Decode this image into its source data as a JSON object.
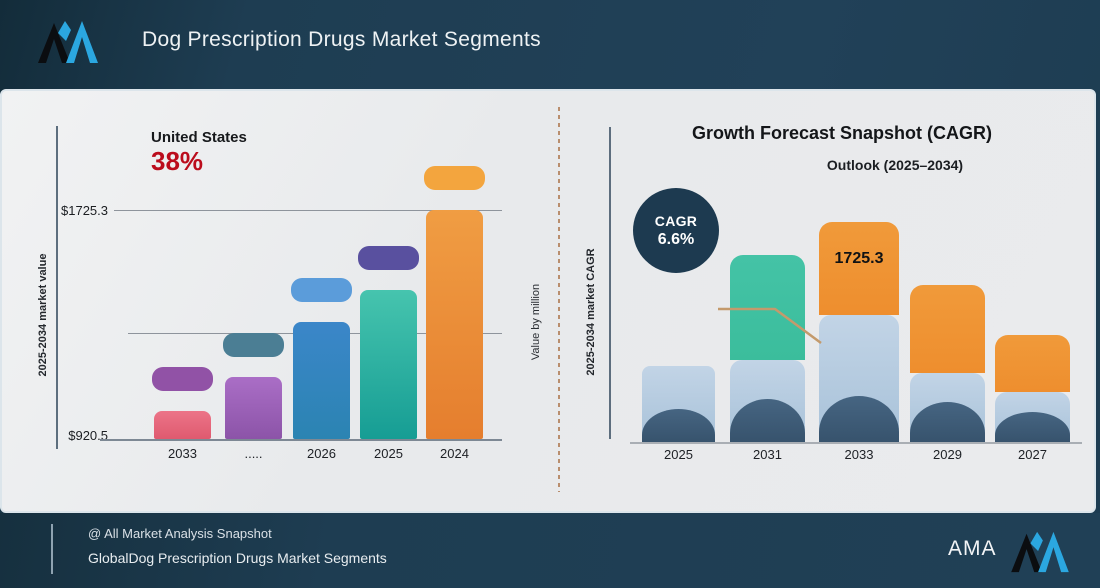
{
  "header": {
    "title": "Dog Prescription Drugs Market Segments"
  },
  "footer": {
    "line1": "@ All Market Analysis Snapshot",
    "line2": "GlobalDog Prescription Drugs Market Segments",
    "brand": "AMA"
  },
  "colors": {
    "header_bg": "#1e3d52",
    "panel_bg": "#e9eaec",
    "accent_red": "#bb0c1c",
    "badge_navy": "#1d3a50",
    "leader_line": "#c49a6c",
    "dashed_divider": "#b98e6e",
    "stack_base_navy": "#3e5c77",
    "stack_mid_lightblue": "#b7cde1",
    "stack_top_teal": "#3bbd9c",
    "stack_top_orange": "#ee8e2e"
  },
  "chart_data": [
    {
      "type": "bar",
      "title": "United States",
      "annotation": "38%",
      "ylabel": "2025-2034 market value",
      "ylabel_right": "Value by million",
      "yticks": [
        "$920.5",
        "$1725.3"
      ],
      "ylim": [
        920.5,
        1725.3
      ],
      "grid": "horizontal",
      "categories": [
        "2033",
        ".....",
        "2026",
        "2025",
        "2024"
      ],
      "values": [
        1020,
        1140,
        1330,
        1445,
        1725.3
      ],
      "bars": [
        {
          "color_top": "#ec7488",
          "color_bottom": "#df5a6f",
          "floater": "#9152a6"
        },
        {
          "color_top": "#aa6ec6",
          "color_bottom": "#8c54a8",
          "floater": "#4b7e94"
        },
        {
          "color_top": "#3b86c9",
          "color_bottom": "#2b84b2",
          "floater": "#5b9cda"
        },
        {
          "color_top": "#46c4ae",
          "color_bottom": "#169d94",
          "floater": "#59509f"
        },
        {
          "color_top": "#f09d43",
          "color_bottom": "#e57e2e",
          "floater": "#f3a53e"
        }
      ]
    },
    {
      "type": "stacked_bar",
      "title": "Growth Forecast Snapshot (CAGR)",
      "subtitle": "Outlook (2025–2034)",
      "ylabel": "2025-2034 market CAGR",
      "cagr_badge": {
        "label": "CAGR",
        "value": "6.6%"
      },
      "legend_position": "none",
      "categories": [
        "2025",
        "2031",
        "2033",
        "2029",
        "2027"
      ],
      "bars": [
        {
          "base_h": 33,
          "mid_top": 76,
          "total_top": 76,
          "top_color": null,
          "label": null
        },
        {
          "base_h": 43,
          "mid_top": 82,
          "total_top": 187,
          "top_color": "#3bbd9c",
          "label": null
        },
        {
          "base_h": 46,
          "mid_top": 127,
          "total_top": 220,
          "top_color": "#ee8e2e",
          "label": "1725.3"
        },
        {
          "base_h": 40,
          "mid_top": 69,
          "total_top": 157,
          "top_color": "#ee8e2e",
          "label": null
        },
        {
          "base_h": 30,
          "mid_top": 50,
          "total_top": 107,
          "top_color": "#ee8e2e",
          "label": null
        }
      ]
    }
  ]
}
